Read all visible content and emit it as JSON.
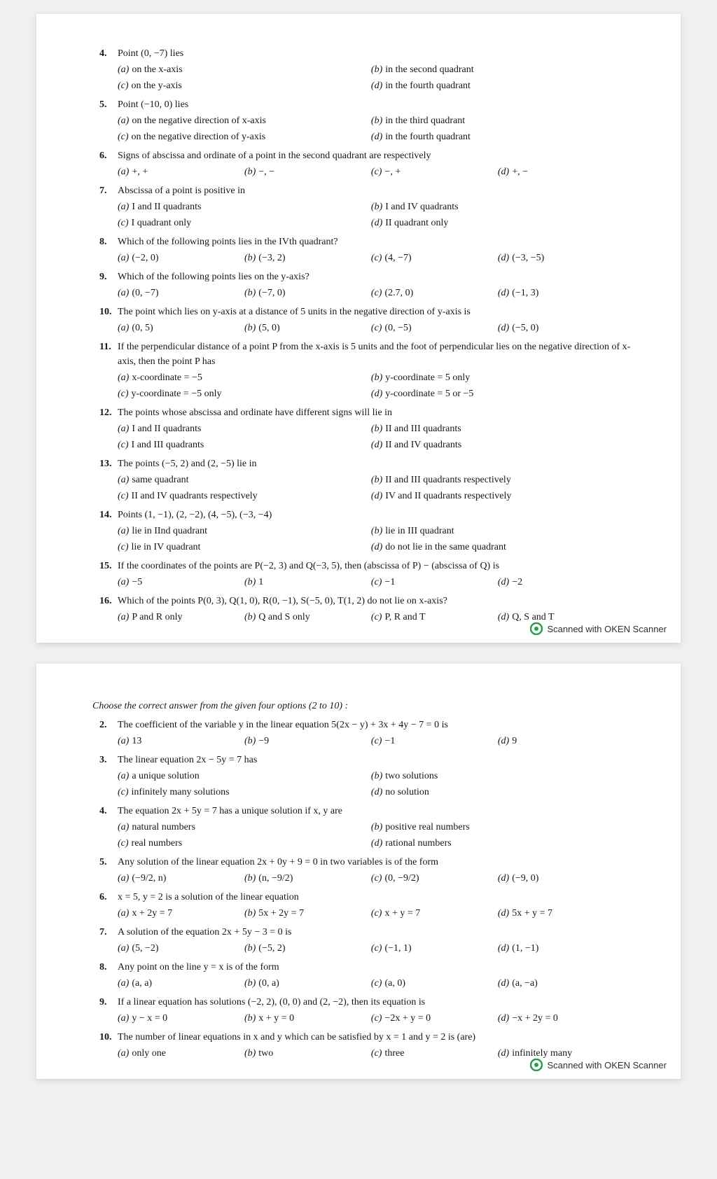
{
  "scanner_badge": "Scanned with OKEN Scanner",
  "page1": {
    "questions": [
      {
        "num": "4.",
        "text": "Point (0, −7) lies",
        "layout": "two-col",
        "opts": [
          {
            "l": "(a)",
            "t": "on the x-axis"
          },
          {
            "l": "(b)",
            "t": "in the second quadrant"
          },
          {
            "l": "(c)",
            "t": "on the y-axis"
          },
          {
            "l": "(d)",
            "t": "in the fourth quadrant"
          }
        ]
      },
      {
        "num": "5.",
        "text": "Point (−10, 0) lies",
        "layout": "two-col",
        "opts": [
          {
            "l": "(a)",
            "t": "on the negative direction of x-axis"
          },
          {
            "l": "(b)",
            "t": "in the third quadrant"
          },
          {
            "l": "(c)",
            "t": "on the negative direction of y-axis"
          },
          {
            "l": "(d)",
            "t": "in the fourth quadrant"
          }
        ]
      },
      {
        "num": "6.",
        "text": "Signs of abscissa and ordinate of a point in the second quadrant are respectively",
        "layout": "four-col",
        "opts": [
          {
            "l": "(a)",
            "t": "+, +"
          },
          {
            "l": "(b)",
            "t": "−, −"
          },
          {
            "l": "(c)",
            "t": "−, +"
          },
          {
            "l": "(d)",
            "t": "+, −"
          }
        ]
      },
      {
        "num": "7.",
        "text": "Abscissa of a point is positive in",
        "layout": "two-col",
        "opts": [
          {
            "l": "(a)",
            "t": "I and II quadrants"
          },
          {
            "l": "(b)",
            "t": "I and IV quadrants"
          },
          {
            "l": "(c)",
            "t": "I quadrant only"
          },
          {
            "l": "(d)",
            "t": "II quadrant only"
          }
        ]
      },
      {
        "num": "8.",
        "text": "Which of the following points lies in the IVth quadrant?",
        "layout": "four-col",
        "opts": [
          {
            "l": "(a)",
            "t": "(−2, 0)"
          },
          {
            "l": "(b)",
            "t": "(−3, 2)"
          },
          {
            "l": "(c)",
            "t": "(4, −7)"
          },
          {
            "l": "(d)",
            "t": "(−3, −5)"
          }
        ]
      },
      {
        "num": "9.",
        "text": "Which of the following points lies on the y-axis?",
        "layout": "four-col",
        "opts": [
          {
            "l": "(a)",
            "t": "(0, −7)"
          },
          {
            "l": "(b)",
            "t": "(−7, 0)"
          },
          {
            "l": "(c)",
            "t": "(2.7, 0)"
          },
          {
            "l": "(d)",
            "t": "(−1, 3)"
          }
        ]
      },
      {
        "num": "10.",
        "text": "The point which lies on y-axis at a distance of 5 units in the negative direction of y-axis is",
        "layout": "four-col",
        "opts": [
          {
            "l": "(a)",
            "t": "(0, 5)"
          },
          {
            "l": "(b)",
            "t": "(5, 0)"
          },
          {
            "l": "(c)",
            "t": "(0, −5)"
          },
          {
            "l": "(d)",
            "t": "(−5, 0)"
          }
        ]
      },
      {
        "num": "11.",
        "text": "If the perpendicular distance of a point P from the x-axis is 5 units and the foot of perpendicular lies on the negative direction of x-axis, then the point P has",
        "layout": "two-col",
        "opts": [
          {
            "l": "(a)",
            "t": "x-coordinate = −5"
          },
          {
            "l": "(b)",
            "t": "y-coordinate = 5 only"
          },
          {
            "l": "(c)",
            "t": "y-coordinate = −5 only"
          },
          {
            "l": "(d)",
            "t": "y-coordinate = 5 or −5"
          }
        ]
      },
      {
        "num": "12.",
        "text": "The points whose abscissa and ordinate have different signs will lie in",
        "layout": "two-col",
        "opts": [
          {
            "l": "(a)",
            "t": "I and II quadrants"
          },
          {
            "l": "(b)",
            "t": "II and III quadrants"
          },
          {
            "l": "(c)",
            "t": "I and III quadrants"
          },
          {
            "l": "(d)",
            "t": "II and IV quadrants"
          }
        ]
      },
      {
        "num": "13.",
        "text": "The points (−5, 2) and (2, −5) lie in",
        "layout": "two-col",
        "opts": [
          {
            "l": "(a)",
            "t": "same quadrant"
          },
          {
            "l": "(b)",
            "t": "II and III quadrants respectively"
          },
          {
            "l": "(c)",
            "t": "II and IV quadrants respectively"
          },
          {
            "l": "(d)",
            "t": "IV and II quadrants respectively"
          }
        ]
      },
      {
        "num": "14.",
        "text": "Points (1, −1), (2, −2), (4, −5), (−3, −4)",
        "layout": "two-col",
        "opts": [
          {
            "l": "(a)",
            "t": "lie in IInd quadrant"
          },
          {
            "l": "(b)",
            "t": "lie in III quadrant"
          },
          {
            "l": "(c)",
            "t": "lie in IV quadrant"
          },
          {
            "l": "(d)",
            "t": "do not lie in the same quadrant"
          }
        ]
      },
      {
        "num": "15.",
        "text": "If the coordinates of the points are P(−2, 3) and Q(−3, 5), then (abscissa of P) − (abscissa of Q) is",
        "layout": "four-col",
        "opts": [
          {
            "l": "(a)",
            "t": "−5"
          },
          {
            "l": "(b)",
            "t": "1"
          },
          {
            "l": "(c)",
            "t": "−1"
          },
          {
            "l": "(d)",
            "t": "−2"
          }
        ]
      },
      {
        "num": "16.",
        "text": "Which of the points P(0, 3), Q(1, 0), R(0, −1), S(−5, 0), T(1, 2) do not lie on x-axis?",
        "layout": "four-col",
        "opts": [
          {
            "l": "(a)",
            "t": "P and R only"
          },
          {
            "l": "(b)",
            "t": "Q and S only"
          },
          {
            "l": "(c)",
            "t": "P, R and T"
          },
          {
            "l": "(d)",
            "t": "Q, S and T"
          }
        ]
      }
    ]
  },
  "page2": {
    "section_note": "Choose the correct answer from the given four options (2 to 10) :",
    "questions": [
      {
        "num": "2.",
        "text": "The coefficient of the variable y in the linear equation 5(2x − y) + 3x + 4y − 7 = 0 is",
        "layout": "four-col",
        "opts": [
          {
            "l": "(a)",
            "t": "13"
          },
          {
            "l": "(b)",
            "t": "−9"
          },
          {
            "l": "(c)",
            "t": "−1"
          },
          {
            "l": "(d)",
            "t": "9"
          }
        ]
      },
      {
        "num": "3.",
        "text": "The linear equation 2x − 5y = 7 has",
        "layout": "two-col",
        "opts": [
          {
            "l": "(a)",
            "t": "a unique solution"
          },
          {
            "l": "(b)",
            "t": "two solutions"
          },
          {
            "l": "(c)",
            "t": "infinitely many solutions"
          },
          {
            "l": "(d)",
            "t": "no solution"
          }
        ]
      },
      {
        "num": "4.",
        "text": "The equation 2x + 5y = 7 has a unique solution if x, y are",
        "layout": "two-col",
        "opts": [
          {
            "l": "(a)",
            "t": "natural numbers"
          },
          {
            "l": "(b)",
            "t": "positive real numbers"
          },
          {
            "l": "(c)",
            "t": "real numbers"
          },
          {
            "l": "(d)",
            "t": "rational numbers"
          }
        ]
      },
      {
        "num": "5.",
        "text": "Any solution of the linear equation 2x + 0y + 9 = 0 in two variables is of the form",
        "layout": "four-col",
        "opts": [
          {
            "l": "(a)",
            "t": "(−9/2, n)"
          },
          {
            "l": "(b)",
            "t": "(n, −9/2)"
          },
          {
            "l": "(c)",
            "t": "(0, −9/2)"
          },
          {
            "l": "(d)",
            "t": "(−9, 0)"
          }
        ]
      },
      {
        "num": "6.",
        "text": "x = 5, y = 2 is a solution of the linear equation",
        "layout": "four-col",
        "opts": [
          {
            "l": "(a)",
            "t": "x + 2y = 7"
          },
          {
            "l": "(b)",
            "t": "5x + 2y = 7"
          },
          {
            "l": "(c)",
            "t": "x + y = 7"
          },
          {
            "l": "(d)",
            "t": "5x + y = 7"
          }
        ]
      },
      {
        "num": "7.",
        "text": "A solution of the equation 2x + 5y − 3 = 0 is",
        "layout": "four-col",
        "opts": [
          {
            "l": "(a)",
            "t": "(5, −2)"
          },
          {
            "l": "(b)",
            "t": "(−5, 2)"
          },
          {
            "l": "(c)",
            "t": "(−1, 1)"
          },
          {
            "l": "(d)",
            "t": "(1, −1)"
          }
        ]
      },
      {
        "num": "8.",
        "text": "Any point on the line y = x is of the form",
        "layout": "four-col",
        "opts": [
          {
            "l": "(a)",
            "t": "(a, a)"
          },
          {
            "l": "(b)",
            "t": "(0, a)"
          },
          {
            "l": "(c)",
            "t": "(a, 0)"
          },
          {
            "l": "(d)",
            "t": "(a, −a)"
          }
        ]
      },
      {
        "num": "9.",
        "text": "If a linear equation has solutions (−2, 2), (0, 0) and (2, −2), then its equation is",
        "layout": "four-col",
        "opts": [
          {
            "l": "(a)",
            "t": "y − x = 0"
          },
          {
            "l": "(b)",
            "t": "x + y = 0"
          },
          {
            "l": "(c)",
            "t": "−2x + y = 0"
          },
          {
            "l": "(d)",
            "t": "−x + 2y = 0"
          }
        ]
      },
      {
        "num": "10.",
        "text": "The number of linear equations in x and y which can be satisfied by x = 1 and y = 2 is (are)",
        "layout": "four-col",
        "opts": [
          {
            "l": "(a)",
            "t": "only one"
          },
          {
            "l": "(b)",
            "t": "two"
          },
          {
            "l": "(c)",
            "t": "three"
          },
          {
            "l": "(d)",
            "t": "infinitely many"
          }
        ]
      }
    ]
  }
}
